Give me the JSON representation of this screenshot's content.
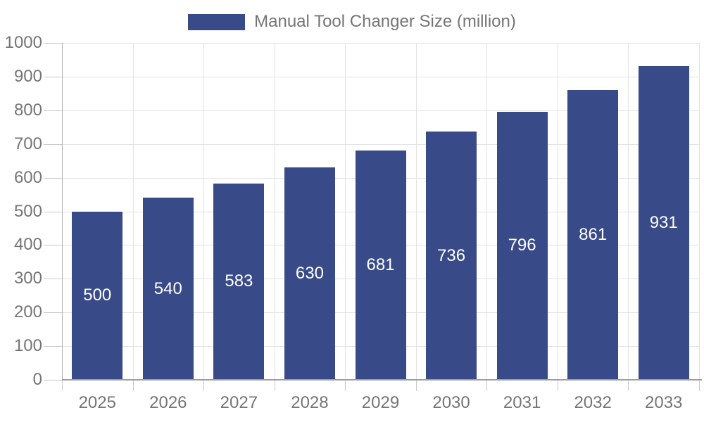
{
  "chart_data": {
    "type": "bar",
    "title": "Manual Tool Changer Size (million)",
    "legend": {
      "label": "Manual Tool Changer Size (million)",
      "position": "top",
      "swatch_color": "#394A89"
    },
    "categories": [
      "2025",
      "2026",
      "2027",
      "2028",
      "2029",
      "2030",
      "2031",
      "2032",
      "2033"
    ],
    "series": [
      {
        "name": "Manual Tool Changer Size (million)",
        "values": [
          500,
          540,
          583,
          630,
          681,
          736,
          796,
          861,
          931
        ],
        "color": "#394A89",
        "value_label_color": "#FFFFFF",
        "value_label_position": "inside-center"
      }
    ],
    "xlabel": "",
    "ylabel": "",
    "ylim": [
      0,
      1000
    ],
    "ytick_step": 100,
    "yticks": [
      0,
      100,
      200,
      300,
      400,
      500,
      600,
      700,
      800,
      900,
      1000
    ],
    "grid": {
      "horizontal": true,
      "vertical": true
    },
    "colors": {
      "background": "#FFFFFF",
      "axis_text": "#757575",
      "grid_line": "#E3E3E3",
      "spine_line": "#B3B3B3",
      "tick_line": "#C9C9C9",
      "axis_line": "#9E9E9E"
    }
  }
}
